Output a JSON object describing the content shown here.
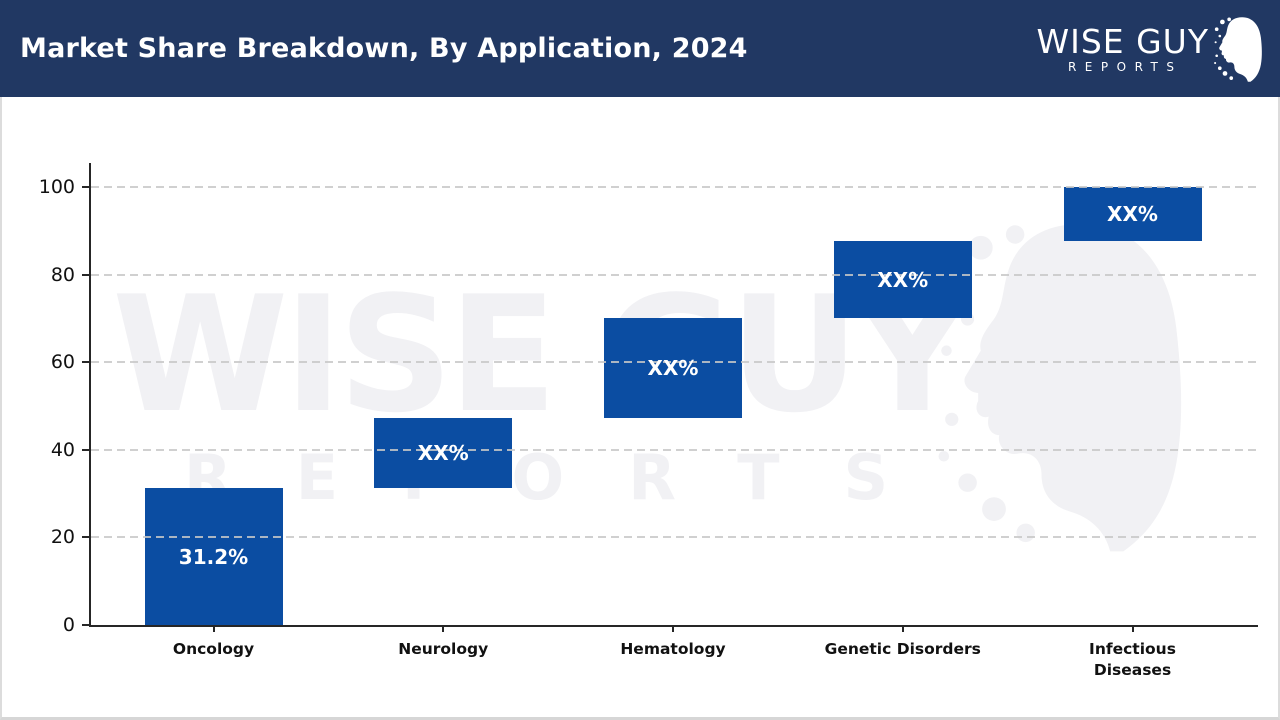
{
  "header": {
    "title": "Market Share Breakdown, By Application, 2024",
    "logo": {
      "wordmark": "WISE GUY",
      "subtext": "REPORTS"
    }
  },
  "watermark": {
    "wordmark": "WISE GUY",
    "subtext": "REPORTS"
  },
  "chart_data": {
    "type": "bar",
    "subtype": "waterfall",
    "title": "Market Share Breakdown, By Application, 2024",
    "categories": [
      "Oncology",
      "Neurology",
      "Hematology",
      "Genetic Disorders",
      "Infectious\nDiseases"
    ],
    "segments": [
      {
        "category": "Oncology",
        "start": 0,
        "end": 31.2,
        "label": "31.2%"
      },
      {
        "category": "Neurology",
        "start": 31.2,
        "end": 47.3,
        "label": "XX%"
      },
      {
        "category": "Hematology",
        "start": 47.3,
        "end": 70.0,
        "label": "XX%"
      },
      {
        "category": "Genetic Disorders",
        "start": 70.0,
        "end": 87.6,
        "label": "XX%"
      },
      {
        "category": "Infectious Diseases",
        "start": 87.6,
        "end": 100.0,
        "label": "XX%"
      }
    ],
    "xlabel": "",
    "ylabel": "",
    "yticks": [
      0,
      20,
      40,
      60,
      80,
      100
    ],
    "ylim": [
      0,
      105
    ],
    "grid": "horizontal-dashed",
    "legend": "none",
    "colors": {
      "bar": "#0b4da2",
      "bar_label": "#ffffff",
      "grid": "#d7d7d7",
      "axis": "#262626",
      "tick_label": "#111111",
      "header_bg": "#213863"
    }
  }
}
